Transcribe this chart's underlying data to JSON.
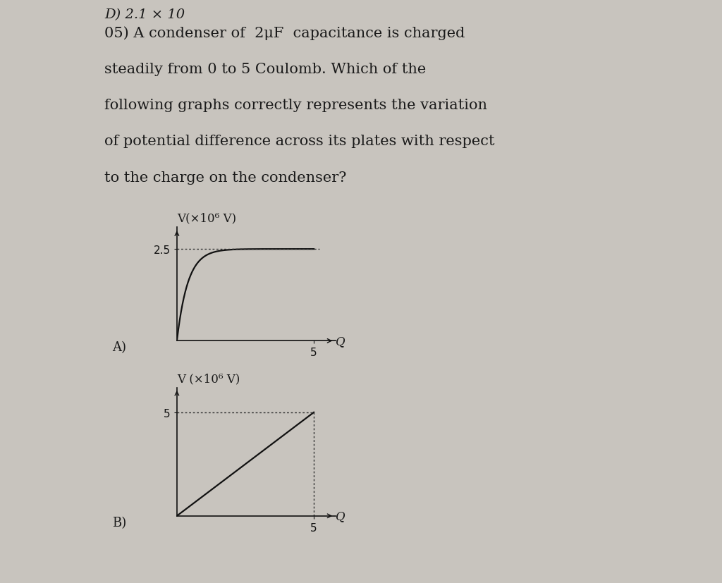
{
  "background_color": "#c8c4be",
  "text_color": "#1a1a1a",
  "header_line": "D) 2.1 × 10",
  "title_line1": "05) A condenser of  2μF  capacitance is charged",
  "title_line2": "steadily from 0 to 5 Coulomb. Which of the",
  "title_line3": "following graphs correctly represents the variation",
  "title_line4": "of potential difference across its plates with respect",
  "title_line5": "to the charge on the condenser?",
  "graph_A_ylabel": "V(×10⁶ V)",
  "graph_A_xlabel": "Q",
  "graph_A_ytick_val": 2.5,
  "graph_A_ytick_label": "2.5",
  "graph_A_xtick_val": 5,
  "graph_A_xtick_label": "5",
  "graph_A_label": "A)",
  "graph_B_ylabel": "V (×10⁶ V)",
  "graph_B_xlabel": "Q",
  "graph_B_ytick_val": 5,
  "graph_B_ytick_label": "5",
  "graph_B_xtick_val": 5,
  "graph_B_xtick_label": "5",
  "graph_B_label": "B)",
  "line_color": "#111111",
  "dashed_color": "#333333",
  "font_size_text": 15,
  "font_size_label": 12,
  "font_size_tick": 11,
  "font_size_header": 14
}
